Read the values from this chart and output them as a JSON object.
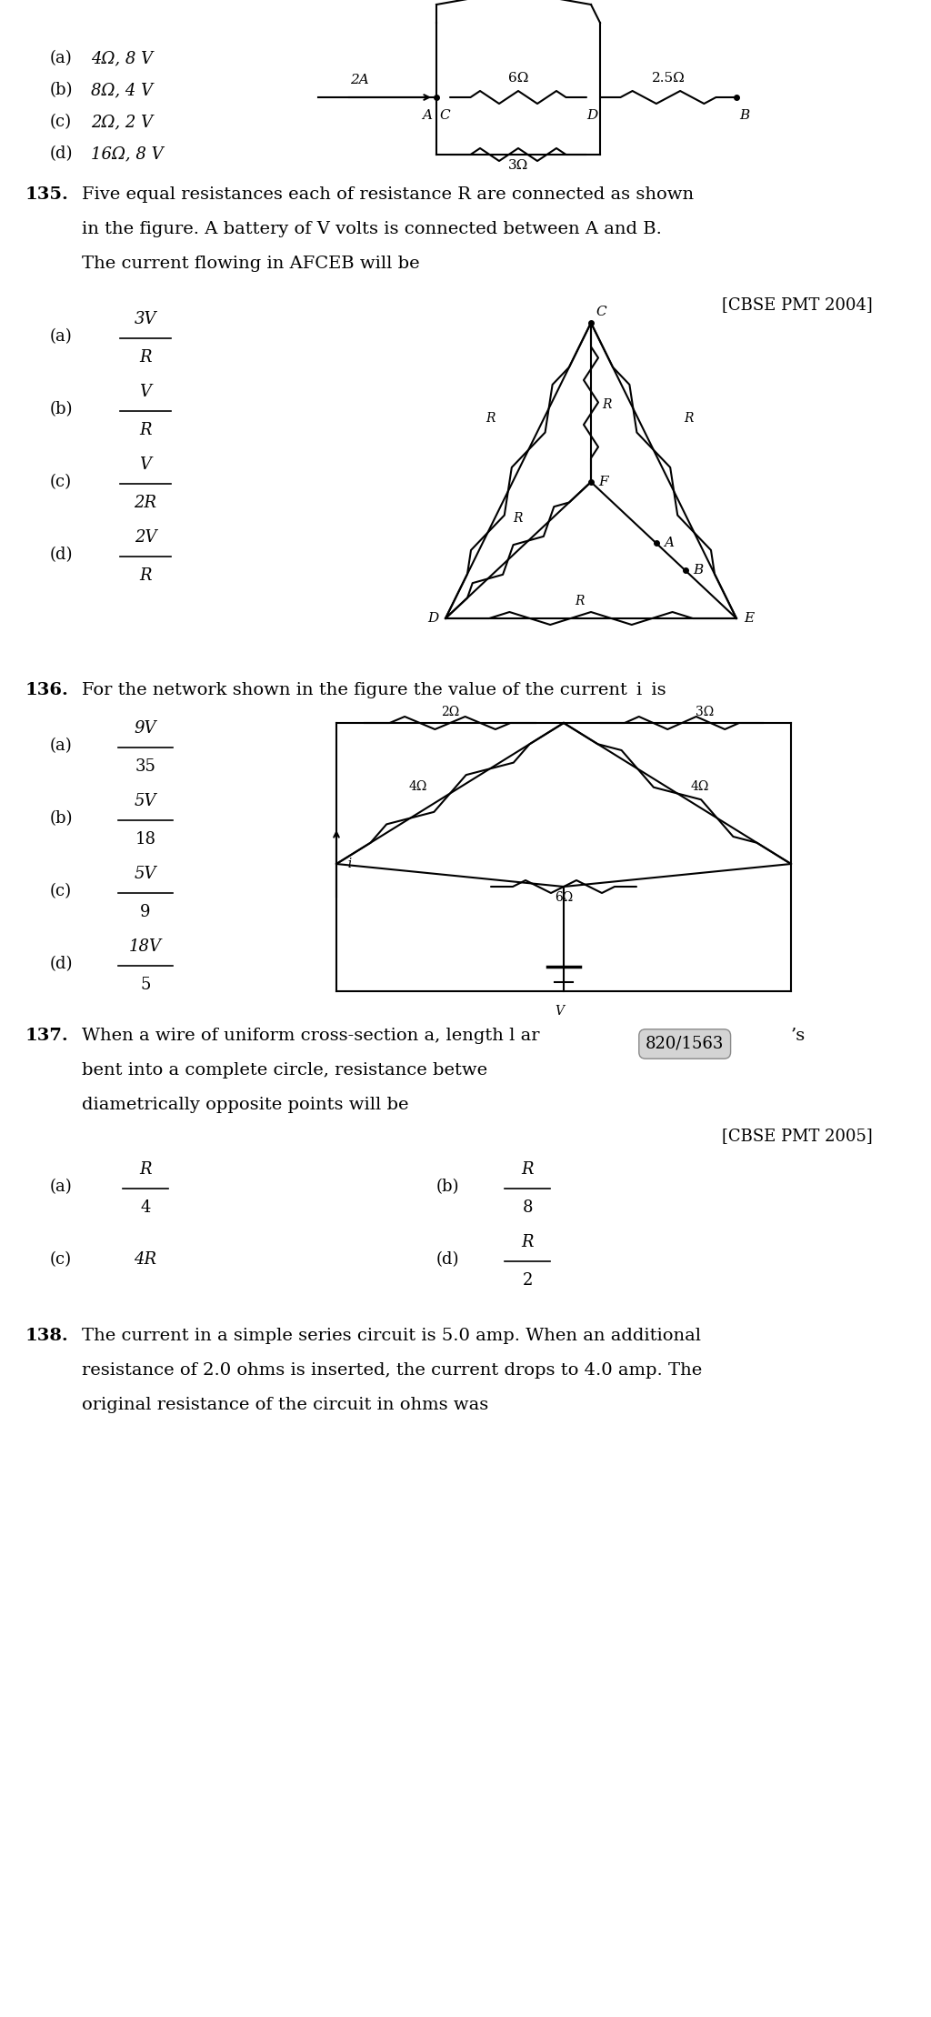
{
  "bg_color": "#ffffff",
  "q134_options": [
    [
      "(a)",
      "4Ω, 8 V"
    ],
    [
      "(b)",
      "8Ω, 4 V"
    ],
    [
      "(c)",
      "2Ω, 2 V"
    ],
    [
      "(d)",
      "16Ω, 8 V"
    ]
  ],
  "q135_line1_normal": "Five equal resistances each of resistance ",
  "q135_line1_italic": "R",
  "q135_line1_normal2": " are connected as shown",
  "q135_line2_normal": "in the figure. A battery of ",
  "q135_line2_italic": "V",
  "q135_line2_normal2": " volts is connected between ",
  "q135_line2_italic2": "A",
  "q135_line2_normal3": " and ",
  "q135_line2_italic3": "B.",
  "q135_line3_normal": "The current flowing in ",
  "q135_line3_italic": "AFCEB",
  "q135_line3_normal2": " will be",
  "q135_ref": "[CBSE PMT 2004]",
  "q135_opts_num": [
    "3V",
    "V",
    "V",
    "2V"
  ],
  "q135_opts_den": [
    "R",
    "R",
    "2R",
    "R"
  ],
  "q136_text_normal": "For the network shown in the figure the value of the current ",
  "q136_text_italic": "i",
  "q136_text_normal2": " is",
  "q136_opts_num": [
    "9V",
    "5V",
    "5V",
    "18V"
  ],
  "q136_opts_den": [
    "35",
    "18",
    "9",
    "5"
  ],
  "q137_line1": "When a wire of uniform cross-section a, length ",
  "q137_line1_l": "l",
  "q137_line1_ar": " ar",
  "q137_line2": "bent into a complete circle, resistance betwe",
  "q137_line3": "diametrically opposite points will be",
  "q137_ref": "[CBSE PMT 2005]",
  "q137_opts_num": [
    "R",
    "R",
    "4R",
    "R"
  ],
  "q137_opts_den": [
    "4",
    "8",
    "",
    "2"
  ],
  "q138_l1n1": "The current in a simple series circuit is 5.0 ",
  "q138_l1i1": "amp.",
  "q138_l1n2": " When an additional",
  "q138_l2n1": "resistance of 2.0 ",
  "q138_l2i1": "ohms",
  "q138_l2n2": " is inserted, the current drops to 4.0 ",
  "q138_l2i2": "amp.",
  "q138_l2n3": " The",
  "q138_l3": "original resistance of the circuit in ohms was"
}
